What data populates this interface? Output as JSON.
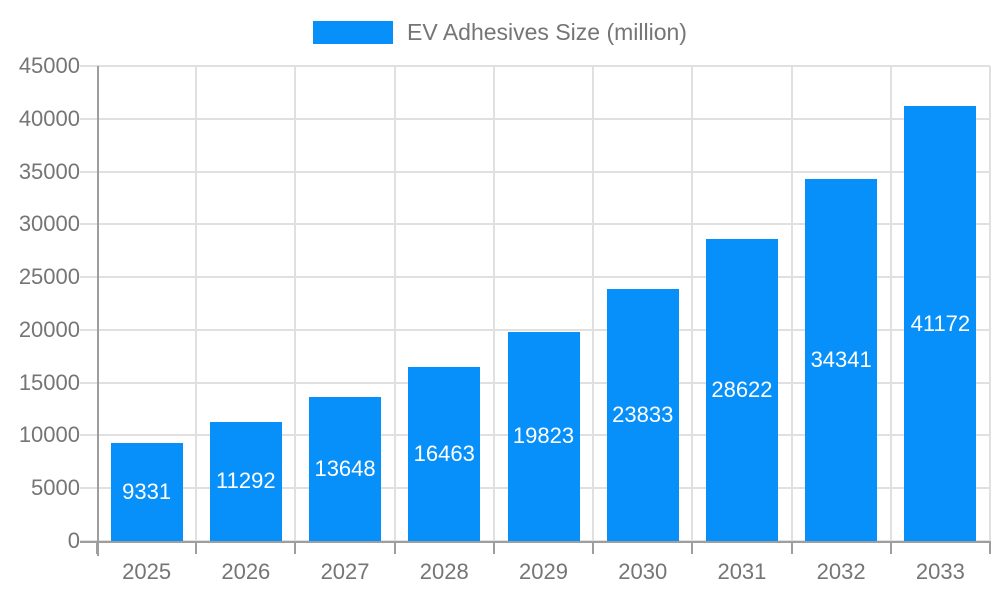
{
  "legend": {
    "label": "EV Adhesives Size (million)"
  },
  "colors": {
    "bar": "#0790fa",
    "grid": "#e0e0e0",
    "axis": "#9e9e9e",
    "text": "#757575",
    "value_label": "#ffffff",
    "background": "#ffffff"
  },
  "chart_data": {
    "type": "bar",
    "title": "EV Adhesives Size (million)",
    "categories": [
      "2025",
      "2026",
      "2027",
      "2028",
      "2029",
      "2030",
      "2031",
      "2032",
      "2033"
    ],
    "values": [
      9331,
      11292,
      13648,
      16463,
      19823,
      23833,
      28622,
      34341,
      41172
    ],
    "xlabel": "",
    "ylabel": "",
    "ylim": [
      0,
      45000
    ],
    "yticks": [
      0,
      5000,
      10000,
      15000,
      20000,
      25000,
      30000,
      35000,
      40000,
      45000
    ],
    "grid": true,
    "legend_position": "top-center",
    "value_labels": "inside-center-white"
  }
}
